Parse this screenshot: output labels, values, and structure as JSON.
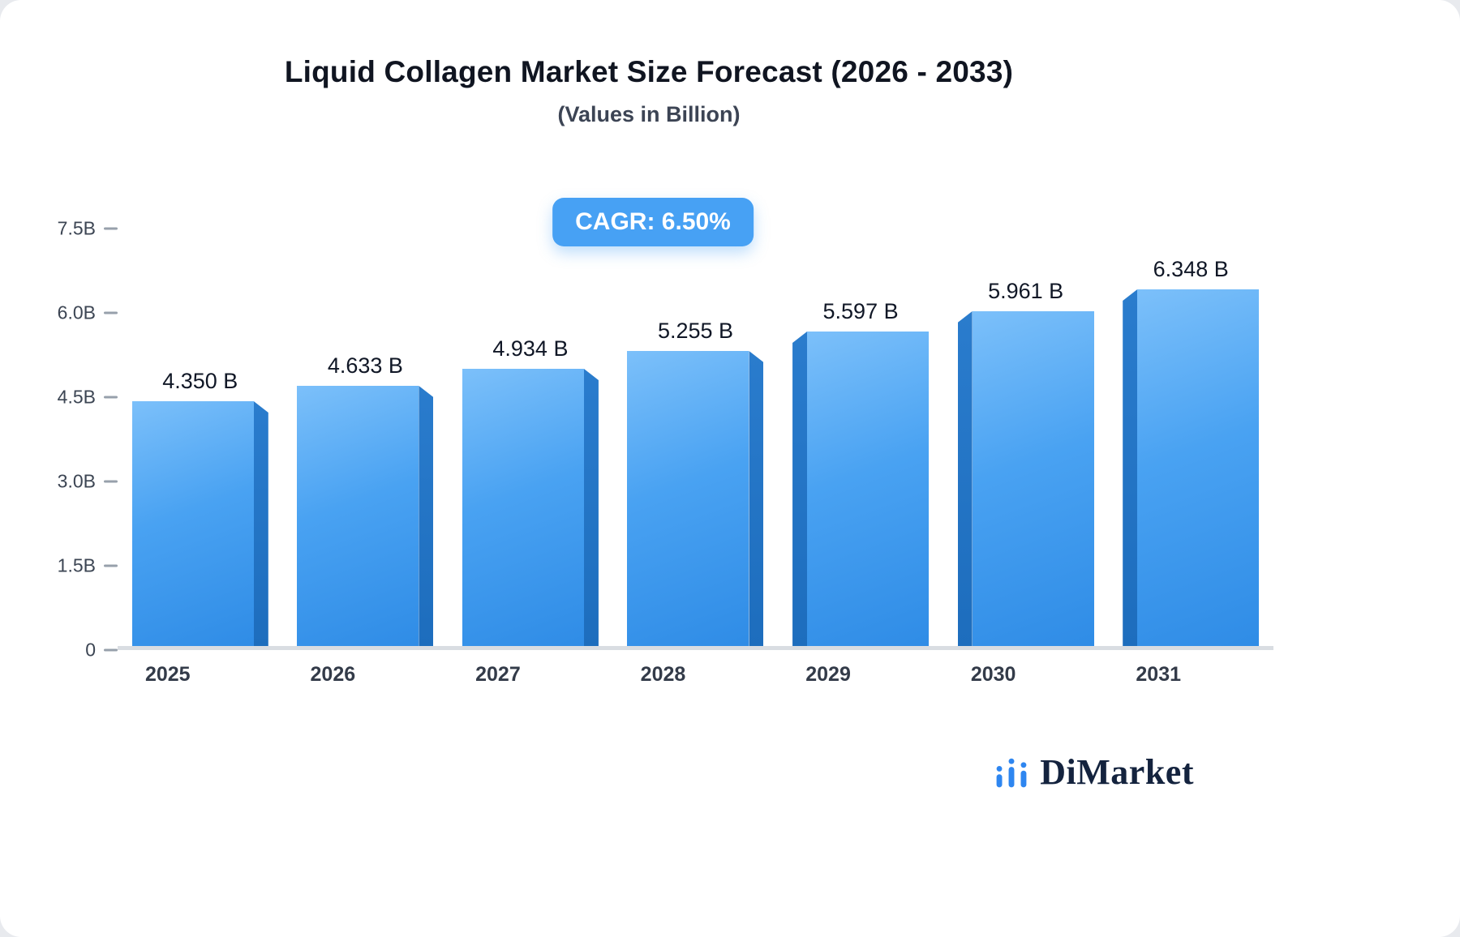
{
  "title": "Liquid Collagen Market Size Forecast (2026 - 2033)",
  "subtitle": "(Values in Billion)",
  "badge": {
    "label": "CAGR: 6.50%"
  },
  "logo": {
    "text": "DiMarket"
  },
  "colors": {
    "badge_bg": "#47a1f4",
    "bar_main": "#42a0f0",
    "bar_side": "#1d6dbd",
    "axis_line": "#d9dde2",
    "logo_icon": "#2e86f0",
    "logo_text": "#14233e"
  },
  "chart_data": {
    "type": "bar",
    "categories": [
      "2025",
      "2026",
      "2027",
      "2028",
      "2029",
      "2030",
      "2031"
    ],
    "values": [
      4.35,
      4.633,
      4.934,
      5.255,
      5.597,
      5.961,
      6.348
    ],
    "value_labels": [
      "4.350 B",
      "4.633 B",
      "4.934 B",
      "5.255 B",
      "5.597 B",
      "5.961 B",
      "6.348 B"
    ],
    "title": "Liquid Collagen Market Size Forecast (2026 - 2033)",
    "subtitle": "(Values in Billion)",
    "annotation": "CAGR: 6.50%",
    "xlabel": "",
    "ylabel": "",
    "ylim": [
      0,
      7.5
    ],
    "yticks": [
      {
        "label": "0",
        "value": 0
      },
      {
        "label": "1.5B",
        "value": 1.5
      },
      {
        "label": "3.0B",
        "value": 3.0
      },
      {
        "label": "4.5B",
        "value": 4.5
      },
      {
        "label": "6.0B",
        "value": 6.0
      },
      {
        "label": "7.5B",
        "value": 7.5
      }
    ],
    "grid": false,
    "legend": false
  }
}
